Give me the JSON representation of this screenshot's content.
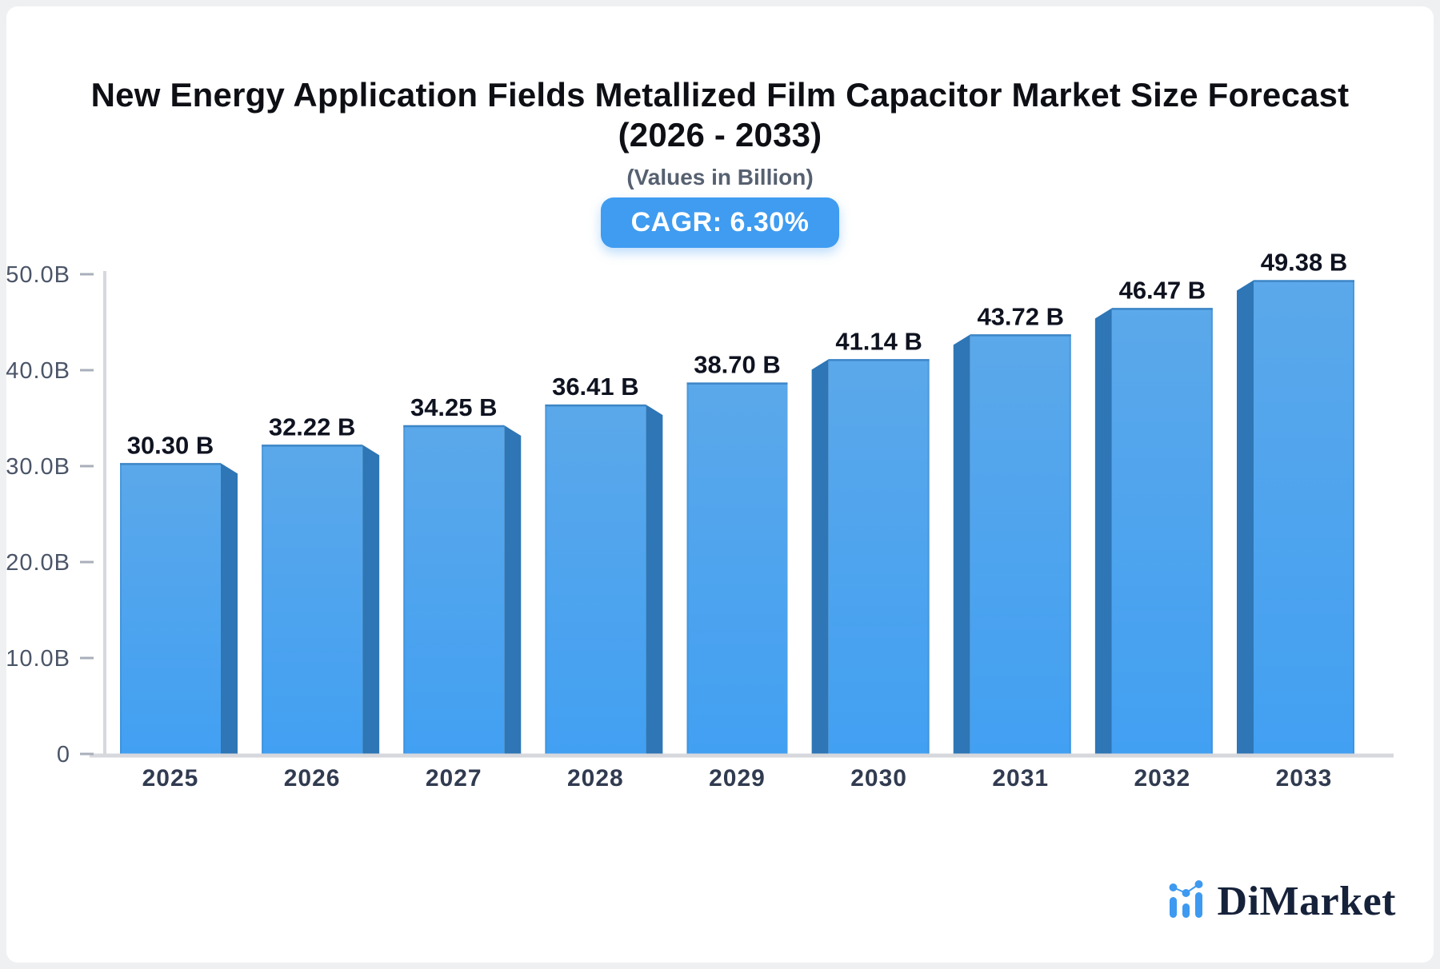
{
  "header": {
    "title_line1": "New Energy Application Fields Metallized Film Capacitor Market Size Forecast",
    "title_line2": "(2026 - 2033)",
    "subtitle": "(Values in Billion)",
    "cagr_badge": "CAGR: 6.30%"
  },
  "chart_data": {
    "type": "bar",
    "title": "New Energy Application Fields Metallized Film Capacitor Market Size Forecast (2026 - 2033)",
    "subtitle": "(Values in Billion)",
    "cagr": "6.30%",
    "categories": [
      "2025",
      "2026",
      "2027",
      "2028",
      "2029",
      "2030",
      "2031",
      "2032",
      "2033"
    ],
    "values": [
      30.3,
      32.22,
      34.25,
      36.41,
      38.7,
      41.14,
      43.72,
      46.47,
      49.38
    ],
    "value_labels": [
      "30.30 B",
      "32.22 B",
      "34.25 B",
      "36.41 B",
      "38.70 B",
      "41.14 B",
      "43.72 B",
      "46.47 B",
      "49.38 B"
    ],
    "xlabel": "",
    "ylabel": "",
    "ylim": [
      0,
      50
    ],
    "y_tick_values": [
      0,
      10,
      20,
      30,
      40,
      50
    ],
    "y_tick_labels": [
      "0",
      "10.0B",
      "20.0B",
      "30.0B",
      "40.0B",
      "50.0B"
    ],
    "grid": false,
    "legend": false,
    "style": "3d-extruded-bars, vanishing point at center bar"
  },
  "colors": {
    "page_bg": "#eff0f2",
    "card_bg": "#ffffff",
    "bar_face_top": "#5ba8ea",
    "bar_face_bottom": "#42a0f2",
    "bar_side": "#2e76b5",
    "bar_top_edge": "#3e86c6",
    "bar_outer_edge": "#3a87c9",
    "badge_bg": "#3f9cf0",
    "axis_line": "#d6d8dd",
    "tick_mark": "#a9afba",
    "y_label": "#4b5568",
    "x_label": "#313b50",
    "value_label": "#0f1320",
    "title_text": "#0d0f14",
    "subtitle_text": "#566070",
    "logo_blue": "#3d9af0",
    "logo_text": "#16223a"
  },
  "logo": {
    "text": "DiMarket",
    "icon": "bar-chart-logo-icon"
  }
}
